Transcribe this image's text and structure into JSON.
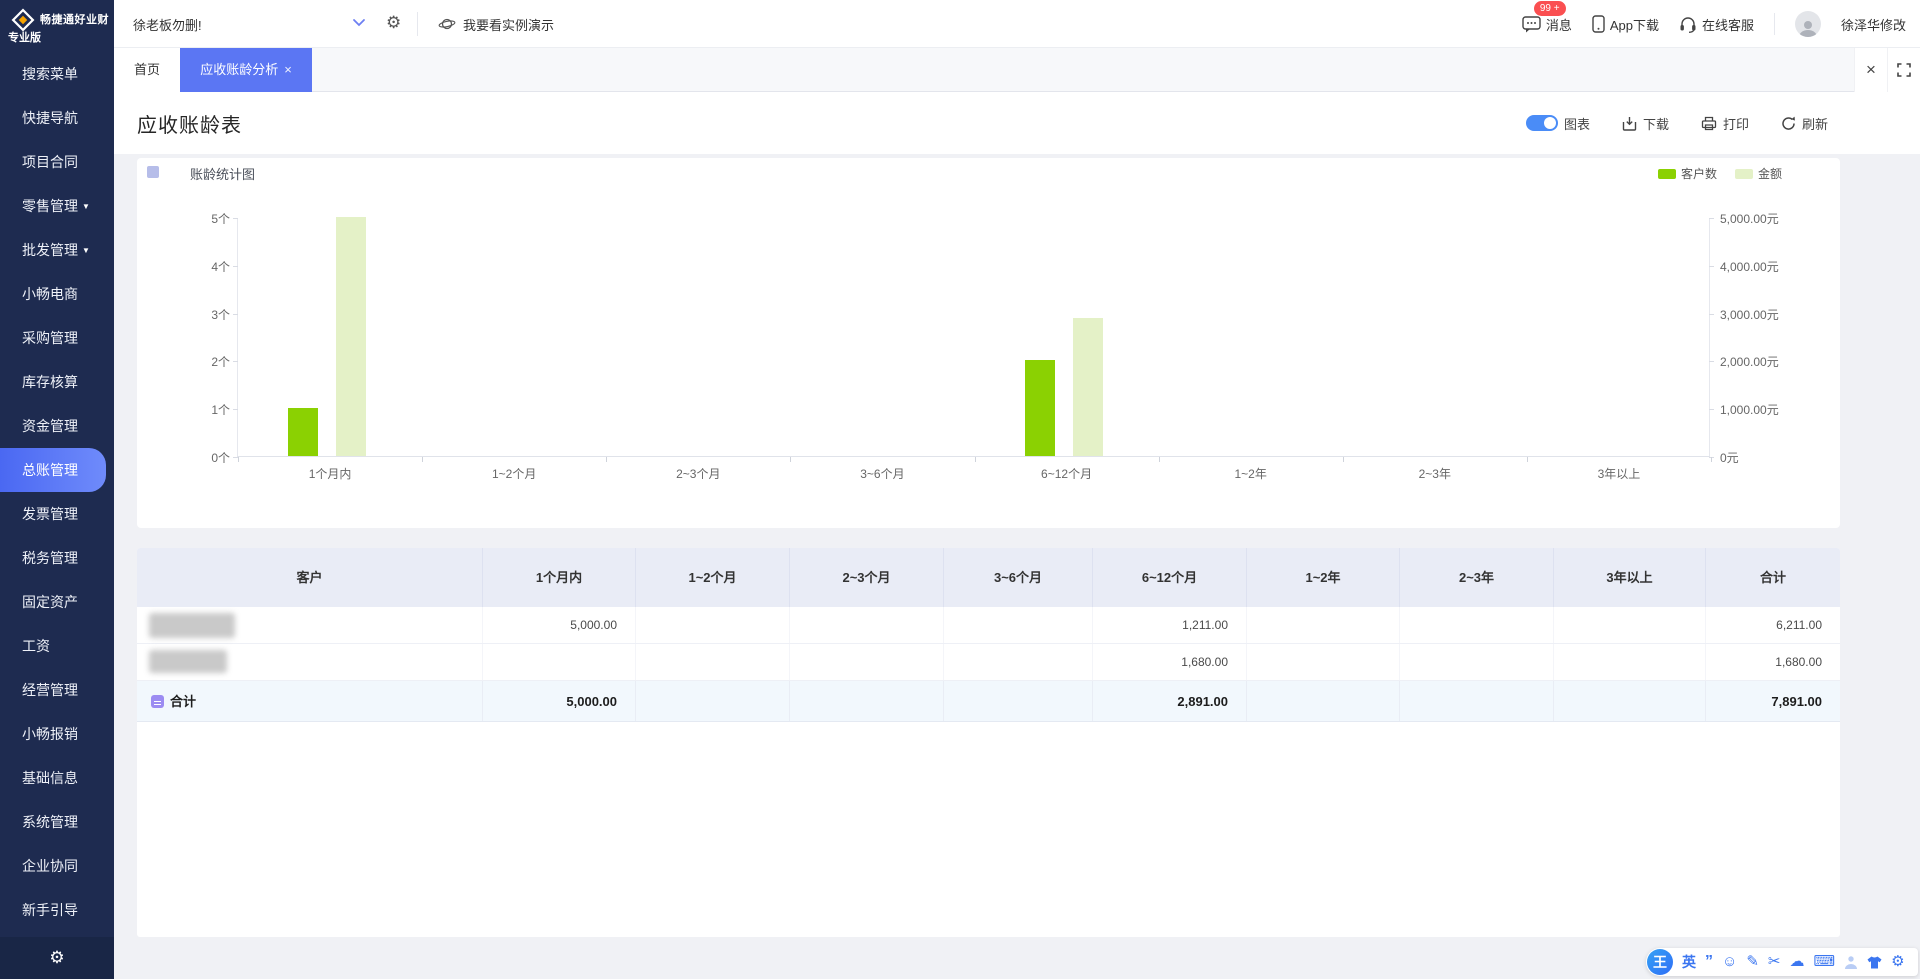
{
  "app": {
    "logo_title": "畅捷通好业财",
    "logo_edition": "专业版"
  },
  "sidebar": {
    "items": [
      {
        "label": "搜索菜单",
        "active": false,
        "arrow": false
      },
      {
        "label": "快捷导航",
        "active": false,
        "arrow": false
      },
      {
        "label": "项目合同",
        "active": false,
        "arrow": false
      },
      {
        "label": "零售管理",
        "active": false,
        "arrow": true
      },
      {
        "label": "批发管理",
        "active": false,
        "arrow": true
      },
      {
        "label": "小畅电商",
        "active": false,
        "arrow": false
      },
      {
        "label": "采购管理",
        "active": false,
        "arrow": false
      },
      {
        "label": "库存核算",
        "active": false,
        "arrow": false
      },
      {
        "label": "资金管理",
        "active": false,
        "arrow": false
      },
      {
        "label": "总账管理",
        "active": true,
        "arrow": false
      },
      {
        "label": "发票管理",
        "active": false,
        "arrow": false
      },
      {
        "label": "税务管理",
        "active": false,
        "arrow": false
      },
      {
        "label": "固定资产",
        "active": false,
        "arrow": false
      },
      {
        "label": "工资",
        "active": false,
        "arrow": false
      },
      {
        "label": "经营管理",
        "active": false,
        "arrow": false
      },
      {
        "label": "小畅报销",
        "active": false,
        "arrow": false
      },
      {
        "label": "基础信息",
        "active": false,
        "arrow": false
      },
      {
        "label": "系统管理",
        "active": false,
        "arrow": false
      },
      {
        "label": "企业协同",
        "active": false,
        "arrow": false
      },
      {
        "label": "新手引导",
        "active": false,
        "arrow": false
      }
    ]
  },
  "topbar": {
    "org_name": "徐老板勿删!",
    "demo_link": "我要看实例演示",
    "messages_label": "消息",
    "messages_badge": "99 +",
    "app_download_label": "App下载",
    "support_label": "在线客服",
    "user_name": "徐泽华修改"
  },
  "tabs": {
    "home": "首页",
    "active": "应收账龄分析",
    "close": "×"
  },
  "page": {
    "title": "应收账龄表",
    "toolbar": {
      "chart_toggle_label": "图表",
      "download_label": "下载",
      "print_label": "打印",
      "refresh_label": "刷新"
    }
  },
  "chart_data": {
    "type": "bar",
    "title": "账龄统计图",
    "categories": [
      "1个月内",
      "1~2个月",
      "2~3个月",
      "3~6个月",
      "6~12个月",
      "1~2年",
      "2~3年",
      "3年以上"
    ],
    "series": [
      {
        "name": "客户数",
        "axis": "left",
        "color": "#8bd102",
        "values": [
          1,
          0,
          0,
          0,
          2,
          0,
          0,
          0
        ]
      },
      {
        "name": "金额",
        "axis": "right",
        "color": "#e4f1c7",
        "values": [
          5000,
          0,
          0,
          0,
          2891,
          0,
          0,
          0
        ]
      }
    ],
    "left_axis": {
      "max": 5,
      "ticks": [
        "5个",
        "4个",
        "3个",
        "2个",
        "1个",
        "0个"
      ]
    },
    "right_axis": {
      "max": 5000,
      "ticks": [
        "5,000.00元",
        "4,000.00元",
        "3,000.00元",
        "2,000.00元",
        "1,000.00元",
        "0元"
      ]
    },
    "legend_position": "top-right",
    "grid": false
  },
  "table": {
    "columns": [
      "客户",
      "1个月内",
      "1~2个月",
      "2~3个月",
      "3~6个月",
      "6~12个月",
      "1~2年",
      "2~3年",
      "3年以上",
      "合计"
    ],
    "rows": [
      {
        "customer_redacted": true,
        "values": [
          "5,000.00",
          "",
          "",
          "",
          "1,211.00",
          "",
          "",
          "",
          "6,211.00"
        ]
      },
      {
        "customer_redacted": true,
        "values": [
          "",
          "",
          "",
          "",
          "1,680.00",
          "",
          "",
          "",
          "1,680.00"
        ]
      }
    ],
    "total": {
      "label": "合计",
      "values": [
        "5,000.00",
        "",
        "",
        "",
        "2,891.00",
        "",
        "",
        "",
        "7,891.00"
      ]
    }
  },
  "ime": {
    "logo": "王",
    "mode": "英",
    "quote": "”",
    "icons": [
      "smiley",
      "pencil",
      "scissors",
      "cloud",
      "keyboard",
      "person",
      "skin",
      "settings"
    ]
  },
  "colors": {
    "sidebar_bg": "#1e2b50",
    "active_item": "#5b76f3",
    "tab_active": "#5b76f3",
    "bar_customers": "#8bd102",
    "bar_amount": "#e4f1c7",
    "table_header_bg": "#e9ecf6",
    "total_row_bg": "#f2f8fd",
    "badge_red": "#fa4f51",
    "toggle_on": "#4a8cf7"
  }
}
